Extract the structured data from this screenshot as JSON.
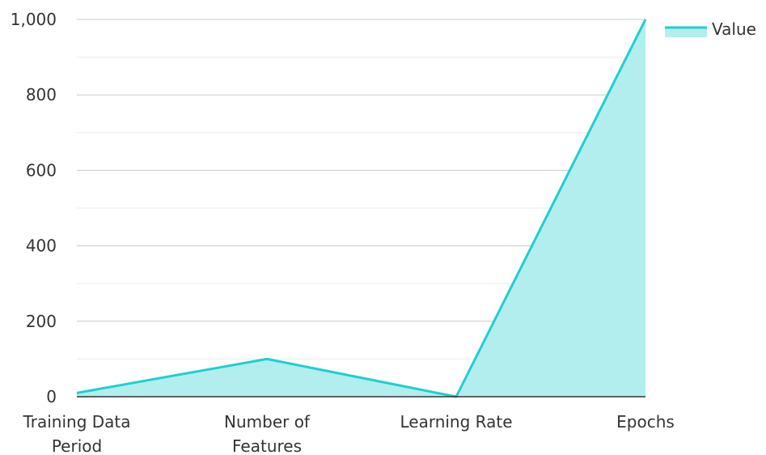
{
  "chart_data": {
    "type": "area",
    "categories": [
      [
        "Training Data",
        "Period"
      ],
      [
        "Number of",
        "Features"
      ],
      [
        "Learning Rate"
      ],
      [
        "Epochs"
      ]
    ],
    "series": [
      {
        "name": "Value",
        "values": [
          10,
          100,
          0,
          1000
        ]
      }
    ],
    "ylim": [
      0,
      1000
    ],
    "yticks": [
      0,
      200,
      400,
      600,
      800,
      1000
    ],
    "ytick_labels": [
      "0",
      "200",
      "400",
      "600",
      "800",
      "1,000"
    ],
    "grid": true,
    "legend": "top-right",
    "colors": {
      "line": "#1fcfcf",
      "fill": "#b2eeee",
      "grid_major": "#c8c8c8",
      "grid_minor": "#ececec",
      "axis": "#333333"
    }
  }
}
